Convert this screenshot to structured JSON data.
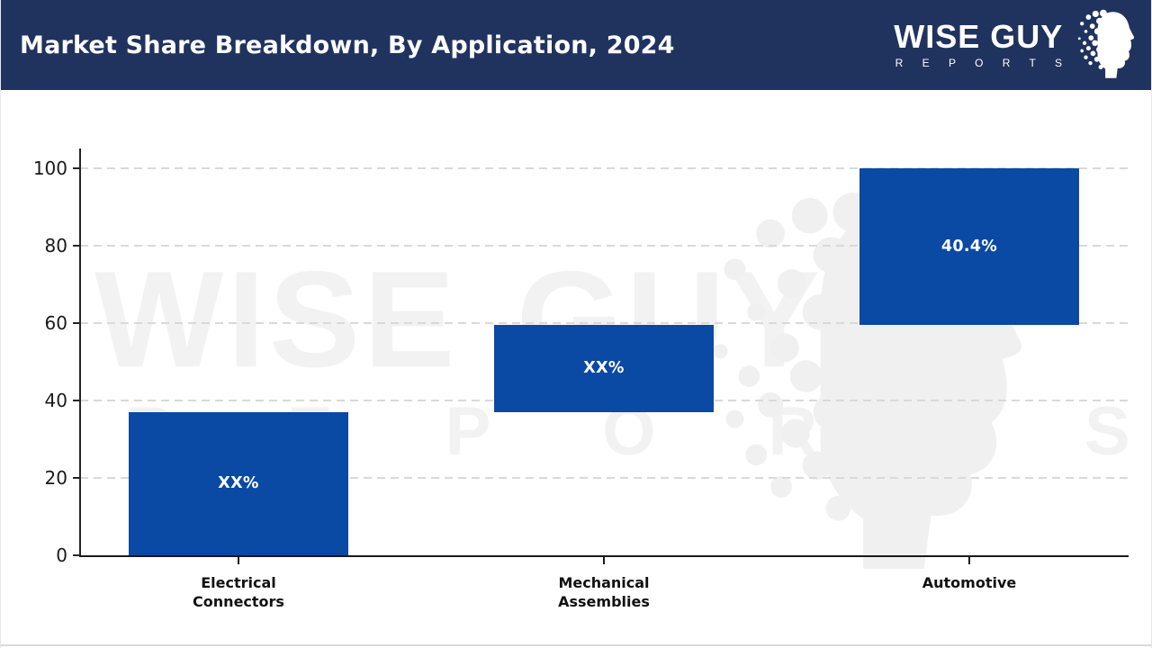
{
  "header": {
    "title": "Market Share Breakdown, By Application, 2024",
    "background_color": "#20335f",
    "logo": {
      "primary": "WISE GUY",
      "secondary": "R E P O R T S"
    }
  },
  "watermark": {
    "primary": "WISE GUY",
    "secondary": "R E P O R T S"
  },
  "chart_data": {
    "type": "bar",
    "variant": "floating-waterfall",
    "title": "Market Share Breakdown, By Application, 2024",
    "categories": [
      [
        "Electrical",
        "Connectors"
      ],
      [
        "Mechanical",
        "Assemblies"
      ],
      [
        "Automotive"
      ]
    ],
    "series": [
      {
        "name": "Market share (%)",
        "segments": [
          {
            "category": "Electrical Connectors",
            "start": 0,
            "end": 37,
            "label": "XX%"
          },
          {
            "category": "Mechanical Assemblies",
            "start": 37,
            "end": 59.6,
            "label": "XX%"
          },
          {
            "category": "Automotive",
            "start": 59.6,
            "end": 100,
            "label": "40.4%"
          }
        ]
      }
    ],
    "ylim": [
      0,
      105
    ],
    "yticks": [
      0,
      20,
      40,
      60,
      80,
      100
    ],
    "grid": {
      "horizontal": true,
      "style": "dashed",
      "color": "#d9d9d9"
    },
    "legend": "none",
    "bar_color": "#0a49a4",
    "bar_label_color": "#ffffff"
  }
}
